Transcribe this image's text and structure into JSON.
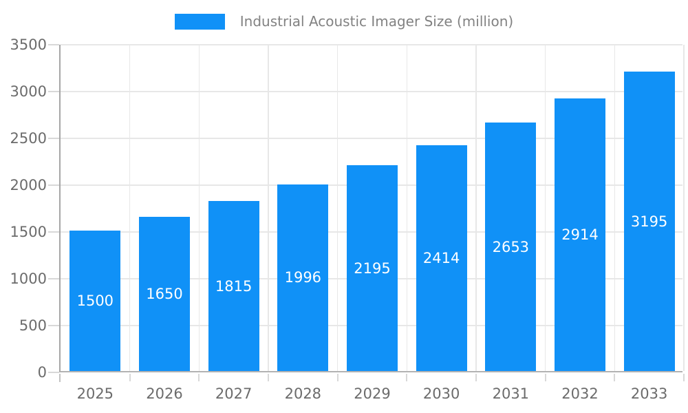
{
  "legend": {
    "label": "Industrial Acoustic Imager Size (million)"
  },
  "chart_data": {
    "type": "bar",
    "title": "Industrial Acoustic Imager Size (million)",
    "categories": [
      "2025",
      "2026",
      "2027",
      "2028",
      "2029",
      "2030",
      "2031",
      "2032",
      "2033"
    ],
    "series": [
      {
        "name": "Industrial Acoustic Imager Size (million)",
        "values": [
          1500,
          1650,
          1815,
          1996,
          2195,
          2414,
          2653,
          2914,
          3195
        ]
      }
    ],
    "values": [
      1500,
      1650,
      1815,
      1996,
      2195,
      2414,
      2653,
      2914,
      3195
    ],
    "value_labels": "inside-center",
    "xlabel": "",
    "ylabel": "",
    "ylim": [
      0,
      3500
    ],
    "yticks": [
      0,
      500,
      1000,
      1500,
      2000,
      2500,
      3000,
      3500
    ],
    "grid": true,
    "legend_position": "top-center",
    "colors": {
      "bar": "#1091F7",
      "bar_label": "#FFFFFF",
      "grid": "#E7E7E7",
      "tick": "#D8D8D8",
      "axis_left": "#A6A6A6",
      "axis_bottom": "#B2B2B2",
      "axis_text": "#6B6B6B",
      "legend_text": "#828282",
      "background": "#FFFFFF"
    }
  }
}
